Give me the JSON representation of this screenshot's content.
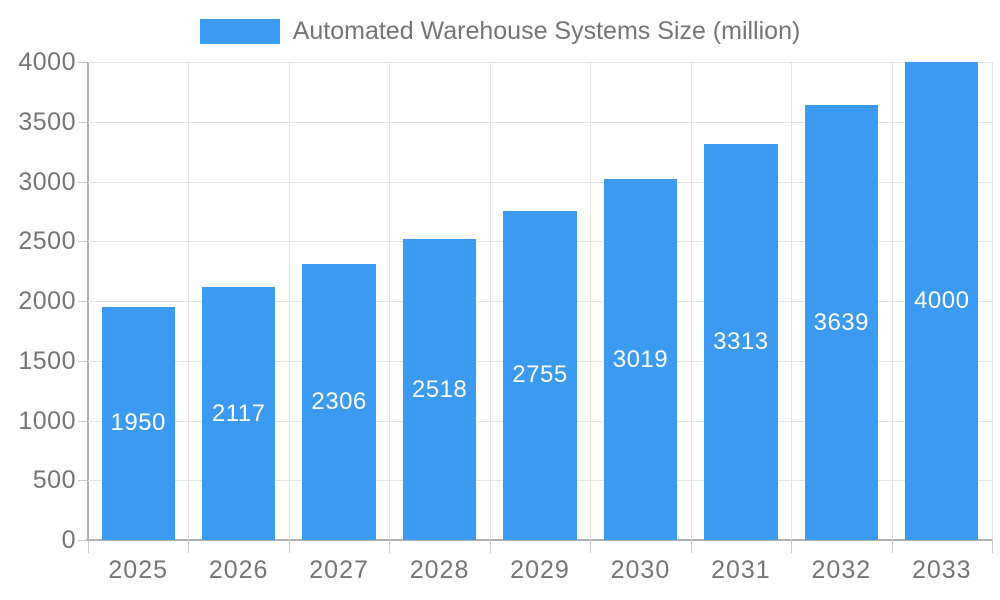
{
  "legend": {
    "label": "Automated Warehouse Systems Size (million)"
  },
  "colors": {
    "bar": "#3b9af2",
    "grid": "#e3e3e3",
    "axis": "#b0b0b0",
    "tick_label": "#757575",
    "value_label": "#ffffff",
    "background": "#ffffff"
  },
  "chart_data": {
    "type": "bar",
    "title": "Automated Warehouse Systems Size (million)",
    "series_name": "Automated Warehouse Systems Size (million)",
    "categories": [
      "2025",
      "2026",
      "2027",
      "2028",
      "2029",
      "2030",
      "2031",
      "2032",
      "2033"
    ],
    "values": [
      1950,
      2117,
      2306,
      2518,
      2755,
      3019,
      3313,
      3639,
      4000
    ],
    "xlabel": "",
    "ylabel": "",
    "ylim": [
      0,
      4000
    ],
    "ytick_step": 500,
    "ytick_labels": [
      "0",
      "500",
      "1000",
      "1500",
      "2000",
      "2500",
      "3000",
      "3500",
      "4000"
    ],
    "grid": true,
    "legend_position": "top",
    "value_label_position": "inside-center",
    "bar_width_fraction": 0.73
  }
}
